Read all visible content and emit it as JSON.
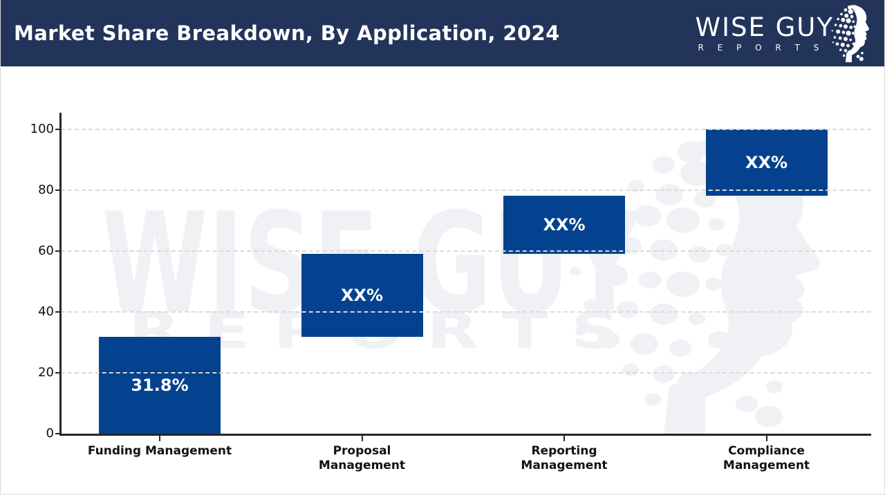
{
  "header": {
    "title": "Market Share Breakdown, By Application, 2024",
    "logo": {
      "wordmark": "WISE GUY",
      "subtext": "R E P O R T S"
    }
  },
  "watermark": {
    "line1": "WISE GUY",
    "line2": "R E P O R T S"
  },
  "colors": {
    "header_bg": "#22345a",
    "bar": "#04428f",
    "bar_label": "#ffffff",
    "watermark": "#eff1f4",
    "gridline": "#d9d9d9",
    "axis": "#262626",
    "tick_label": "#111111"
  },
  "chart_data": {
    "type": "bar",
    "subtype": "waterfall",
    "title": "Market Share Breakdown, By Application, 2024",
    "categories": [
      "Funding Management",
      "Proposal Management",
      "Reporting Management",
      "Compliance Management"
    ],
    "x_tick_labels": [
      "Funding Management",
      "Proposal\nManagement",
      "Reporting\nManagement",
      "Compliance\nManagement"
    ],
    "segments": [
      {
        "category": "Funding Management",
        "bar_label": "31.8%",
        "start": 0,
        "end": 31.8,
        "value": 31.8
      },
      {
        "category": "Proposal Management",
        "bar_label": "XX%",
        "start": 31.8,
        "end": 59.2,
        "value": 27.4
      },
      {
        "category": "Reporting Management",
        "bar_label": "XX%",
        "start": 59.2,
        "end": 78.2,
        "value": 19.0
      },
      {
        "category": "Compliance Management",
        "bar_label": "XX%",
        "start": 78.2,
        "end": 100,
        "value": 21.8
      }
    ],
    "y_ticks": [
      0,
      20,
      40,
      60,
      80,
      100
    ],
    "ylim": [
      0,
      100
    ],
    "grid": "horizontal-dashed",
    "legend": "none"
  }
}
